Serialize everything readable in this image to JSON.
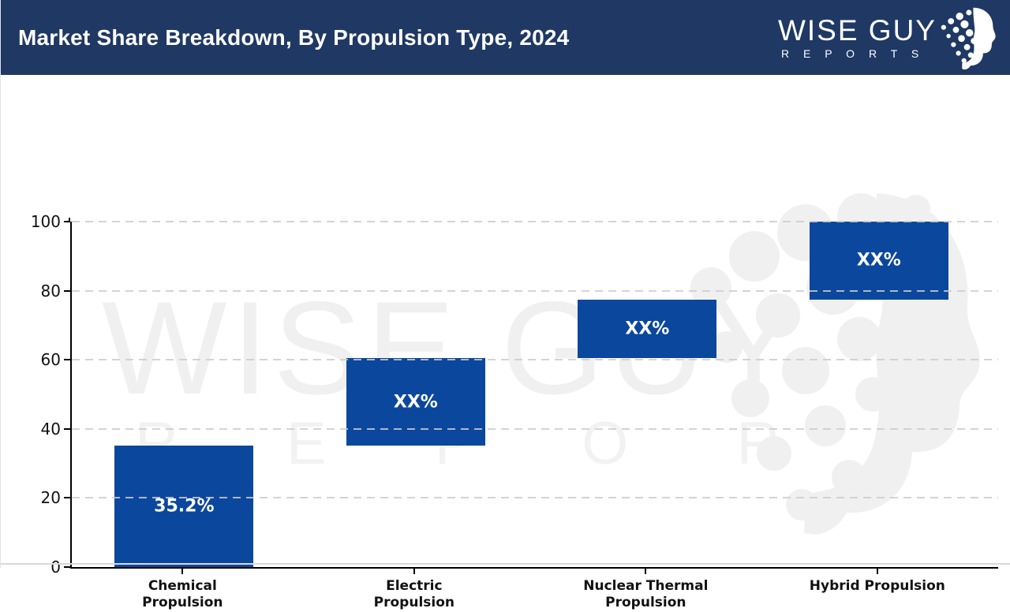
{
  "header": {
    "title": "Market Share Breakdown, By Propulsion Type, 2024",
    "logo": {
      "name": "WISE GUY",
      "sub": "R E P O R T S"
    },
    "bg_color": "#1f3864"
  },
  "watermark": {
    "name": "WISE GUY",
    "sub": "R E P O R T S"
  },
  "chart_data": {
    "type": "bar",
    "variant": "waterfall",
    "title": "Market Share Breakdown, By Propulsion Type, 2024",
    "categories": [
      "Chemical Propulsion",
      "Electric Propulsion",
      "Nuclear Thermal Propulsion",
      "Hybrid Propulsion"
    ],
    "category_lines": [
      [
        "Chemical",
        "Propulsion"
      ],
      [
        "Electric",
        "Propulsion"
      ],
      [
        "Nuclear Thermal",
        "Propulsion"
      ],
      [
        "Hybrid Propulsion"
      ]
    ],
    "bars": [
      {
        "category": "Chemical Propulsion",
        "start": 0,
        "end": 35.2,
        "label": "35.2%"
      },
      {
        "category": "Electric Propulsion",
        "start": 35.2,
        "end": 60.4,
        "label": "XX%"
      },
      {
        "category": "Nuclear Thermal Propulsion",
        "start": 60.4,
        "end": 77.5,
        "label": "XX%"
      },
      {
        "category": "Hybrid Propulsion",
        "start": 77.5,
        "end": 100,
        "label": "XX%"
      }
    ],
    "ylim": [
      0,
      100
    ],
    "yticks": [
      0,
      20,
      40,
      60,
      80,
      100
    ],
    "xlabel": "",
    "ylabel": "",
    "grid": "dashed-horizontal",
    "legend": "none",
    "colors": {
      "bar": "#0b479d",
      "bar_label": "#ffffff",
      "grid": "#cccccc",
      "axis": "#000000",
      "tick_label": "#111111",
      "header_bg": "#1f3864",
      "watermark": "#f0f0f0"
    }
  }
}
